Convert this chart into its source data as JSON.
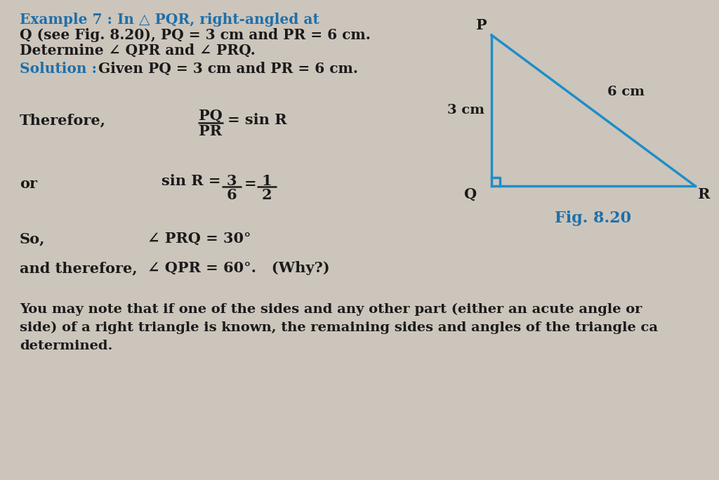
{
  "bg_color": "#ccc5bb",
  "title_color": "#1e6faa",
  "solution_color": "#1e6faa",
  "body_color": "#1a1a1a",
  "triangle_color": "#1e8ec8",
  "fig_label_color": "#1e6faa",
  "example_line1": "Example 7 : In △ PQR, right-angled at",
  "example_line2": "Q (see Fig. 8.20), PQ = 3 cm and PR = 6 cm.",
  "example_line3": "Determine ∠ QPR and ∠ PRQ.",
  "solution_label": "Solution :",
  "solution_text": "Given PQ = 3 cm and PR = 6 cm.",
  "therefore_label": "Therefore,",
  "or_label": "or",
  "so_label": "So,",
  "so_eq": "∠ PRQ = 30°",
  "and_therefore_label": "and therefore,",
  "and_therefore_eq": "∠ QPR = 60°.   (Why?)",
  "note_line1": "You may note that if one of the sides and any other part (either an acute angle or",
  "note_line2": "side) of a right triangle is known, the remaining sides and angles of the triangle ca",
  "note_line3": "determined.",
  "fig_label": "Fig. 8.20",
  "label_P": "P",
  "label_Q": "Q",
  "label_R": "R",
  "label_3cm": "3 cm",
  "label_6cm": "6 cm",
  "sinR_prefix": "sin R = ",
  "frac_num1": "3",
  "frac_den1": "6",
  "frac_num2": "1",
  "frac_den2": "2",
  "frac_pq": "PQ",
  "frac_pr": "PR",
  "eq_sinR": "= sin R"
}
